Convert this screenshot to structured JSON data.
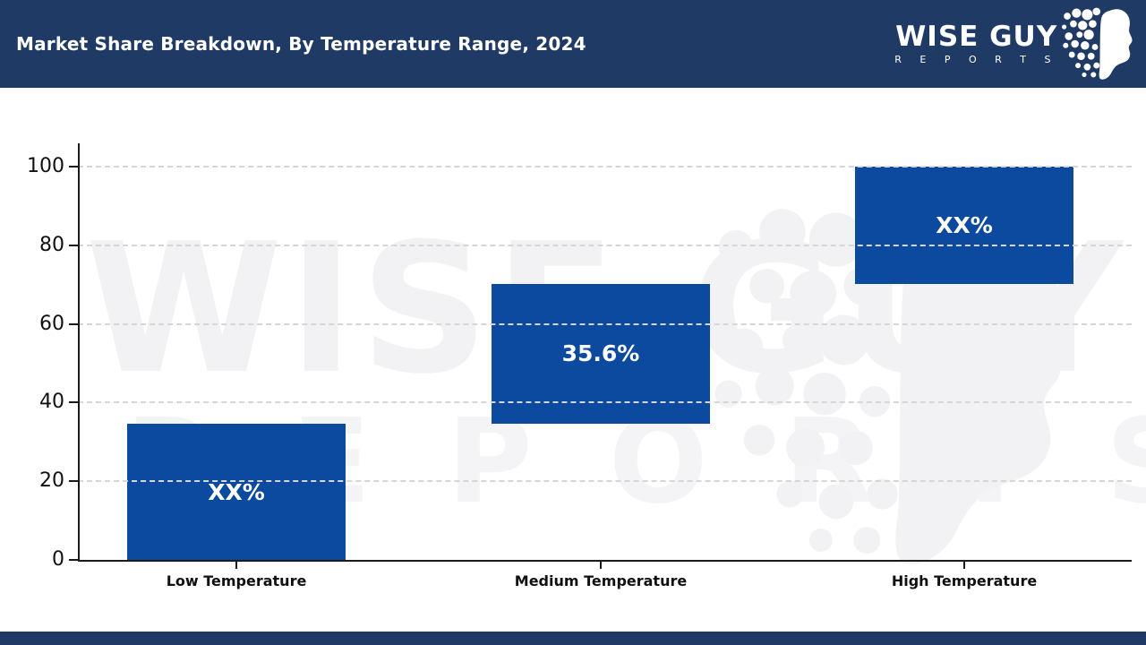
{
  "header": {
    "title": "Market Share Breakdown, By Temperature Range, 2024",
    "logo": {
      "wordmark": "WISE GUY",
      "subtitle": "R E P O R T S"
    }
  },
  "watermark": {
    "line1": "WISE GUY",
    "line2": "R E P O R T S"
  },
  "chart_data": {
    "type": "bar",
    "subtype": "floating-waterfall",
    "title": "Market Share Breakdown, By Temperature Range, 2024",
    "categories": [
      "Low Temperature",
      "Medium Temperature",
      "High Temperature"
    ],
    "segments": [
      {
        "category": "Low Temperature",
        "start": 0,
        "end": 34.6,
        "label": "XX%"
      },
      {
        "category": "Medium Temperature",
        "start": 34.6,
        "end": 70.2,
        "label": "35.6%"
      },
      {
        "category": "High Temperature",
        "start": 70.2,
        "end": 100,
        "label": "XX%"
      }
    ],
    "yticks": [
      0,
      20,
      40,
      60,
      80,
      100
    ],
    "ylim": [
      0,
      100
    ],
    "grid": "horizontal-dashed",
    "legend": "none",
    "bar_color": "#0B4A9E",
    "bar_label_color": "#ffffff",
    "axis_color": "#1a1a1a",
    "gridline_color": "#d6d6d6"
  },
  "colors": {
    "header_bg": "#203A66",
    "footer_bg": "#203A66",
    "watermark_gray": "#f2f2f5"
  }
}
